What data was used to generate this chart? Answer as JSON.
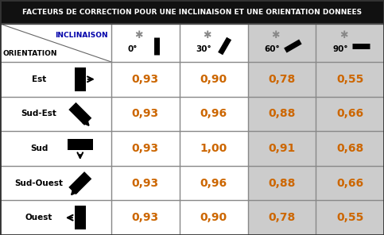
{
  "title": "FACTEURS DE CORRECTION POUR UNE INCLINAISON ET UNE ORIENTATION DONNEES",
  "title_bg": "#111111",
  "title_color": "#ffffff",
  "header_bg": "#ffffff",
  "col_header_label1": "INCLINAISON",
  "col_header_label2": "ORIENTATION",
  "angles": [
    "0°",
    "30°",
    "60°",
    "90°"
  ],
  "orientations": [
    "Est",
    "Sud-Est",
    "Sud",
    "Sud-Ouest",
    "Ouest"
  ],
  "values": [
    [
      "0,93",
      "0,90",
      "0,78",
      "0,55"
    ],
    [
      "0,93",
      "0,96",
      "0,88",
      "0,66"
    ],
    [
      "0,93",
      "1,00",
      "0,91",
      "0,68"
    ],
    [
      "0,93",
      "0,96",
      "0,88",
      "0,66"
    ],
    [
      "0,93",
      "0,90",
      "0,78",
      "0,55"
    ]
  ],
  "value_color": "#cc6600",
  "shaded_cols_indices": [
    2,
    3
  ],
  "shaded_bg": "#cccccc",
  "white_bg": "#ffffff",
  "grid_color": "#888888",
  "figsize": [
    4.83,
    2.96
  ],
  "dpi": 100
}
